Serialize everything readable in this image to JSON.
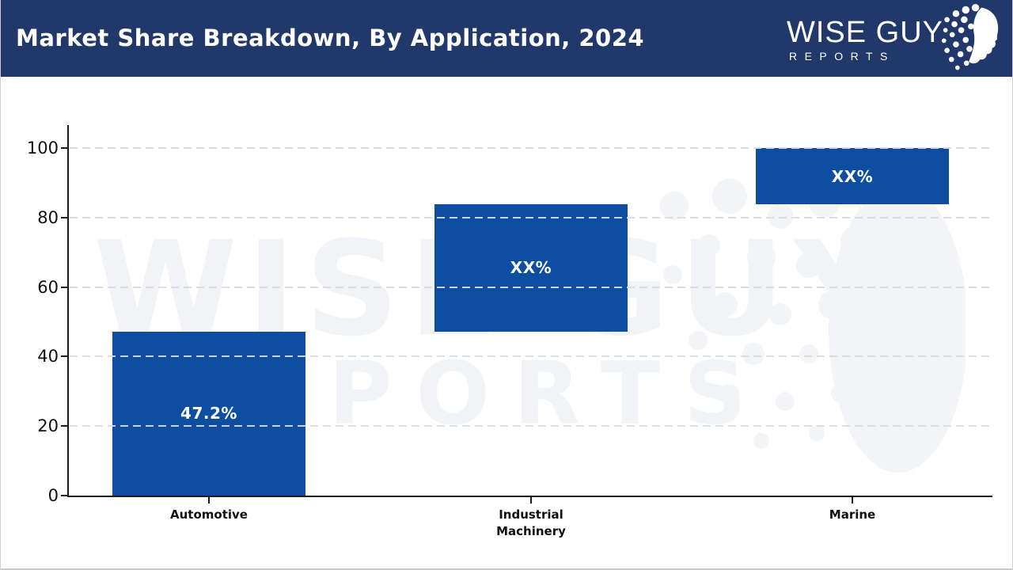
{
  "header": {
    "title": "Market Share Breakdown, By Application, 2024",
    "bg_color": "#21386a",
    "logo": {
      "line1": "WISE GUY",
      "line2": "REPORTS"
    }
  },
  "watermark": {
    "line1": "WISE GUY",
    "line2": "REPORTS"
  },
  "chart_data": {
    "type": "bar",
    "subtype": "stacked-waterfall",
    "title": "Market Share Breakdown, By Application, 2024",
    "categories": [
      "Automotive",
      "Industrial\nMachinery",
      "Marine"
    ],
    "segments": [
      {
        "category": "Automotive",
        "start": 0,
        "end": 47.2,
        "label": "47.2%"
      },
      {
        "category": "Industrial Machinery",
        "start": 47.2,
        "end": 83.8,
        "label": "XX%"
      },
      {
        "category": "Marine",
        "start": 83.8,
        "end": 100,
        "label": "XX%"
      }
    ],
    "yticks": [
      0,
      20,
      40,
      60,
      80,
      100
    ],
    "ylim": [
      0,
      106.8
    ],
    "grid": "horizontal-dashed",
    "gridline_color": "#dadce0",
    "bar_color": "#0d4da2",
    "axis_color": "#1a1a1a",
    "legend": "none"
  }
}
